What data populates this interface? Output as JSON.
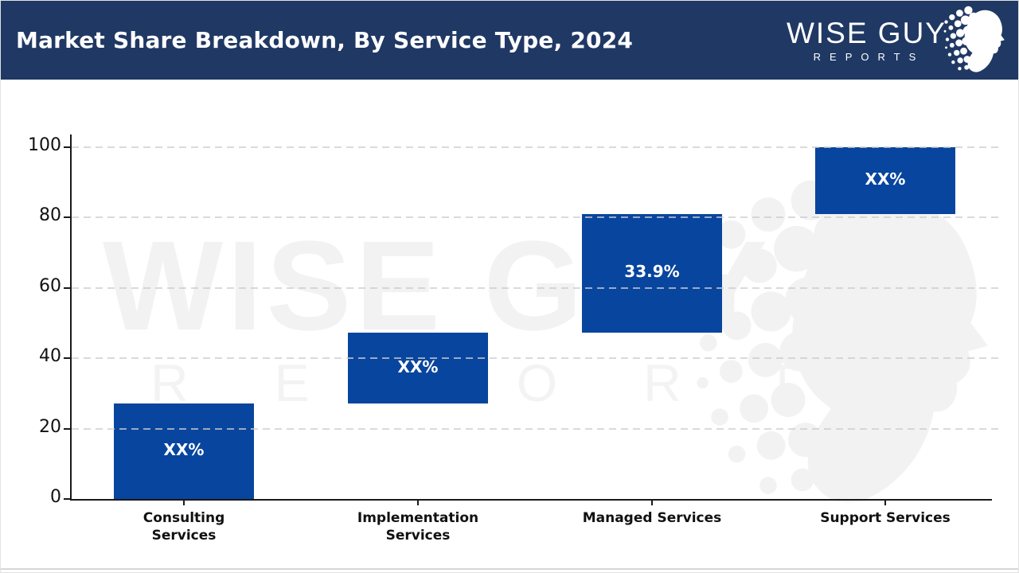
{
  "header": {
    "title": "Market Share Breakdown, By Service Type, 2024",
    "logo": {
      "brand_line1": "WISE GUY",
      "brand_line2": "REPORTS"
    }
  },
  "watermark": {
    "brand_line1": "WISE GUY",
    "brand_line2": "REPORTS"
  },
  "chart_data": {
    "type": "bar",
    "subtype": "waterfall",
    "title": "Market Share Breakdown, By Service Type, 2024",
    "categories": [
      [
        "Consulting",
        "Services"
      ],
      [
        "Implementation",
        "Services"
      ],
      [
        "Managed Services"
      ],
      [
        "Support Services"
      ]
    ],
    "category_ids": [
      "consulting-services",
      "implementation-services",
      "managed-services",
      "support-services"
    ],
    "values": [
      27.1,
      20.1,
      33.9,
      18.9
    ],
    "segments": [
      {
        "start": 0,
        "end": 27.1
      },
      {
        "start": 27.1,
        "end": 47.2
      },
      {
        "start": 47.2,
        "end": 81.1
      },
      {
        "start": 81.1,
        "end": 100
      }
    ],
    "bar_labels": [
      "XX%",
      "XX%",
      "33.9%",
      "XX%"
    ],
    "yticks": [
      0,
      20,
      40,
      60,
      80,
      100
    ],
    "ylim": [
      0,
      105
    ],
    "xlabel": "",
    "ylabel": "",
    "grid": "horizontal-dashed",
    "legend": "none",
    "bar_color": "#08459e",
    "label_color": "#ffffff",
    "axis_color": "#1a1a1a",
    "grid_color": "#d9d9d9",
    "header_color": "#203864"
  }
}
